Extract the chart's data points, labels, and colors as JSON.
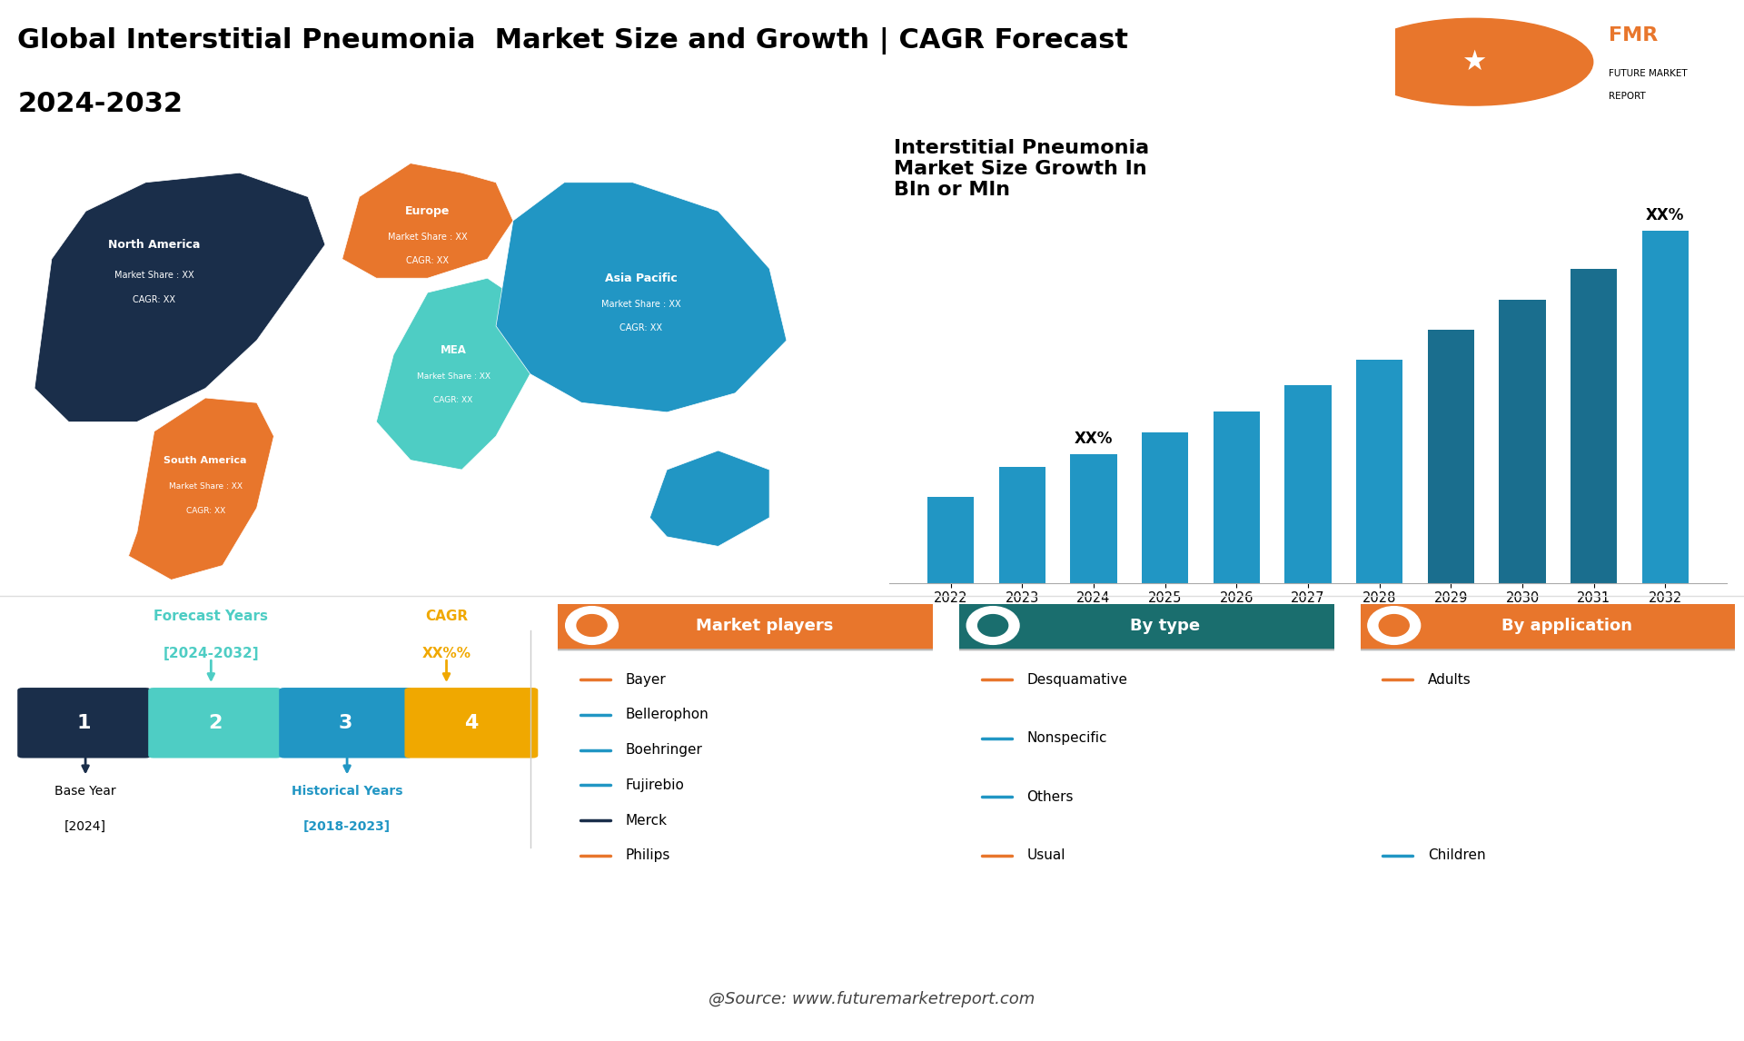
{
  "title_line1": "Global Interstitial Pneumonia  Market Size and Growth | CAGR Forecast",
  "title_line2": "2024-2032",
  "title_fontsize": 22,
  "background_color": "#ffffff",
  "bar_years": [
    "2022",
    "2023",
    "2024",
    "2025",
    "2026",
    "2027",
    "2028",
    "2029",
    "2030",
    "2031",
    "2032"
  ],
  "bar_values": [
    1,
    1.35,
    1.5,
    1.75,
    2.0,
    2.3,
    2.6,
    2.95,
    3.3,
    3.65,
    4.1
  ],
  "bar_color_dark": "#1a6e8e",
  "bar_color_light": "#2196c4",
  "bar_chart_title": "Interstitial Pneumonia\nMarket Size Growth In\nBln or Mln",
  "bar_label_2024": "XX%",
  "bar_label_2032": "XX%",
  "segment1_title": "Market players",
  "segment1_color": "#e8762c",
  "segment1_items": [
    "Bayer",
    "Bellerophon",
    "Boehringer",
    "Fujirebio",
    "Merck",
    "Philips"
  ],
  "segment1_bullet_colors": [
    "#e8762c",
    "#2196c4",
    "#2196c4",
    "#2196c4",
    "#1a2e4a",
    "#e8762c"
  ],
  "segment2_title": "By type",
  "segment2_color": "#1a6e6e",
  "segment2_items": [
    "Desquamative",
    "Nonspecific",
    "Others",
    "Usual"
  ],
  "segment2_bullet_colors": [
    "#e8762c",
    "#2196c4",
    "#2196c4",
    "#e8762c"
  ],
  "segment3_title": "By application",
  "segment3_color": "#e8762c",
  "segment3_items": [
    "Adults",
    "Children"
  ],
  "segment3_bullet_colors": [
    "#e8762c",
    "#2196c4"
  ],
  "timeline_labels": [
    "1",
    "2",
    "3",
    "4"
  ],
  "timeline_colors": [
    "#1a2e4a",
    "#4ecdc4",
    "#2196c4",
    "#f0a800"
  ],
  "source_text": "@Source: www.futuremarketreport.com"
}
